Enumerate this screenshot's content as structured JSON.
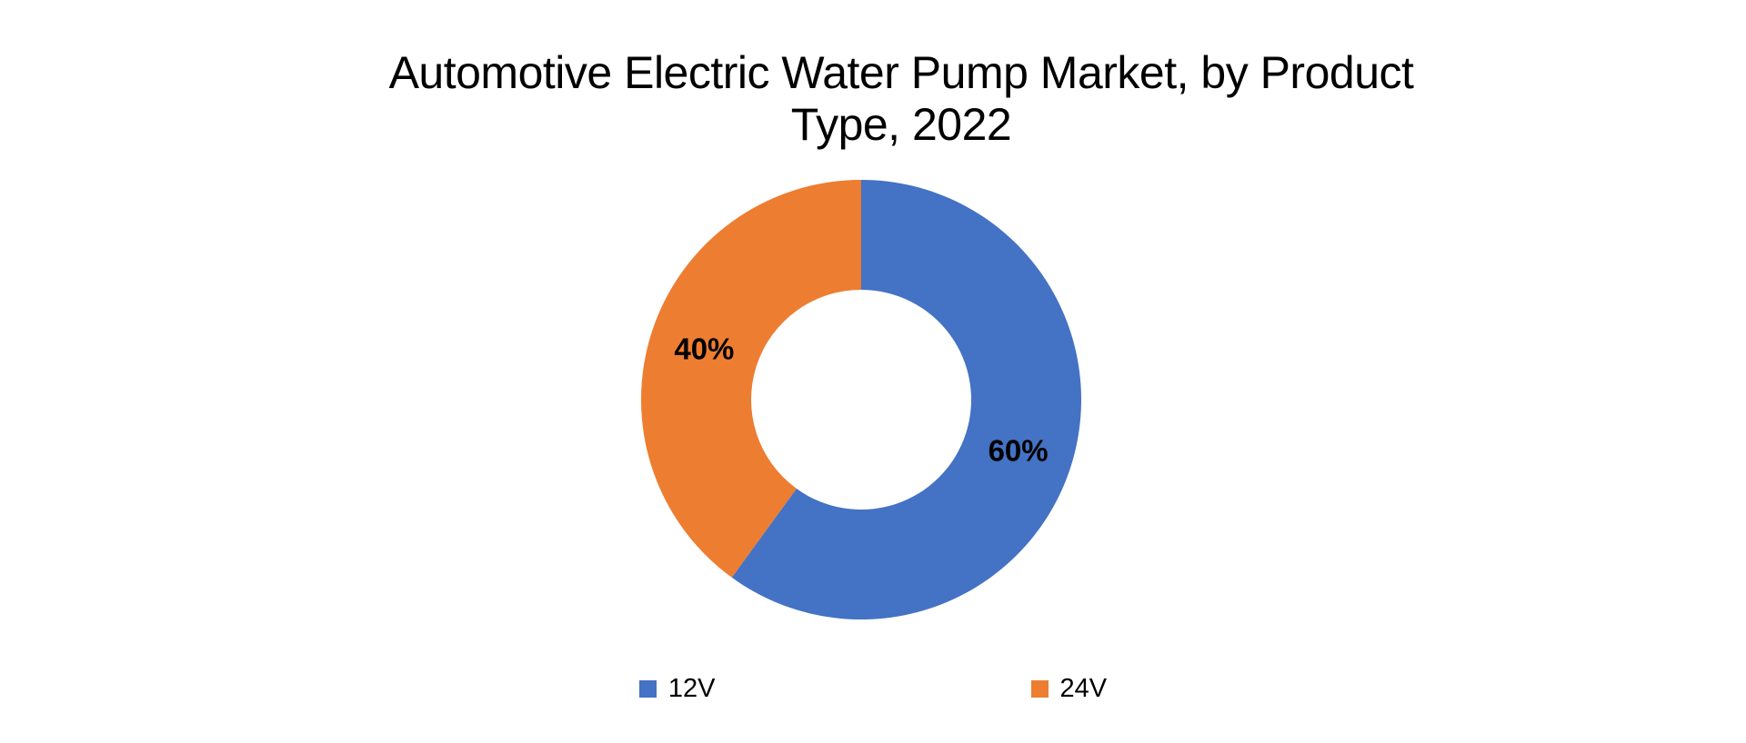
{
  "title": {
    "line1": "Automotive Electric Water Pump Market, by Product",
    "line2": "Type, 2022"
  },
  "chart_data": {
    "type": "pie",
    "subtype": "donut",
    "title": "Automotive Electric Water Pump Market, by Product Type, 2022",
    "labels": [
      "12V",
      "24V"
    ],
    "values": [
      60,
      40
    ],
    "value_labels": [
      "60%",
      "40%"
    ],
    "colors": [
      "#4472C4",
      "#ED7D31"
    ],
    "data_label_color": "#000000",
    "start_angle_deg": 0,
    "direction": "clockwise",
    "donut_hole_ratio": 0.5,
    "legend_position": "bottom",
    "background": "#ffffff"
  }
}
